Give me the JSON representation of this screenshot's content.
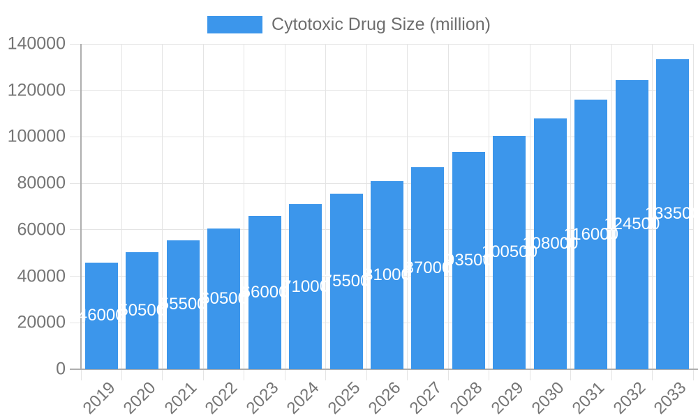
{
  "legend": {
    "label": "Cytotoxic Drug Size (million)"
  },
  "chart_data": {
    "type": "bar",
    "title": "Cytotoxic Drug Size (million)",
    "categories": [
      "2019",
      "2020",
      "2021",
      "2022",
      "2023",
      "2024",
      "2025",
      "2026",
      "2027",
      "2028",
      "2029",
      "2030",
      "2031",
      "2032",
      "2033"
    ],
    "values": [
      46000,
      50500,
      55500,
      60500,
      66000,
      71000,
      75500,
      81000,
      87000,
      93500,
      100500,
      108000,
      116000,
      124500,
      133500
    ],
    "data_labels": [
      "46000",
      "50500",
      "55500",
      "60500",
      "66000",
      "71000",
      "75500",
      "81000",
      "87000",
      "93500",
      "100500",
      "108000",
      "116000",
      "124500",
      "133500"
    ],
    "xlabel": "",
    "ylabel": "",
    "ylim": [
      0,
      140000
    ],
    "y_ticks": [
      0,
      20000,
      40000,
      60000,
      80000,
      100000,
      120000,
      140000
    ],
    "grid": true,
    "legend_position": "top-center",
    "colors": {
      "bar": "#3C96EB",
      "grid": "#E4E4E4",
      "axis": "#AEAEAE",
      "tick_label": "#757575",
      "legend_label": "#6E6E6E",
      "data_label": "#FFFFFF",
      "background": "#FFFFFF"
    }
  }
}
